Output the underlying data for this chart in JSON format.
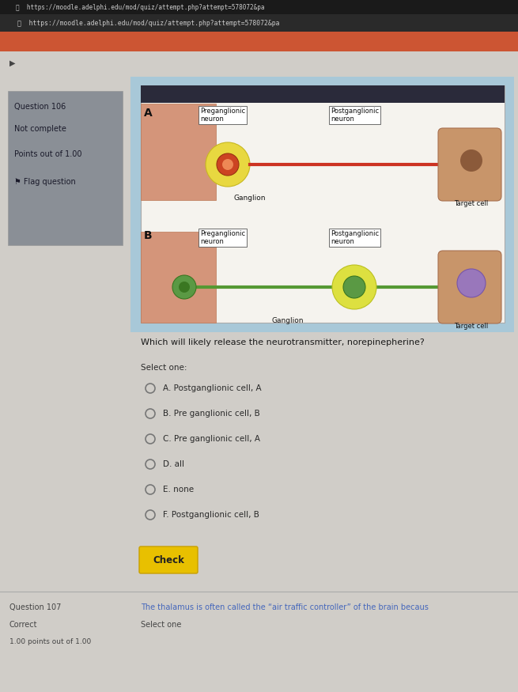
{
  "bg_color": "#c0bdb8",
  "top_title_bar_color": "#1a1a1a",
  "url_bar_color": "#2d2d2d",
  "url_text": "https://moodle.adelphi.edu/mod/quiz/attempt.php?attempt=578072&pa",
  "url_text_color": "#dddddd",
  "orange_bar_color": "#cc5533",
  "page_bg": "#d0cdc8",
  "left_panel_bg": "#8a8f96",
  "left_panel_text_color": "#1a1a2a",
  "left_panel_lines": [
    "Question 106",
    "Not complete",
    "Points out of 1.00",
    "⚑ Flag question"
  ],
  "diag_outer_bg": "#a8c8d8",
  "diag_inner_bg": "#f5f3ee",
  "diag_top_bar": "#2a2a3a",
  "question_text": "Which will likely release the neurotransmitter, norepinepherine?",
  "question_color": "#1a1a1a",
  "select_one_text": "Select one:",
  "options": [
    "A. Postganglionic cell, A",
    "B. Pre ganglionic cell, B",
    "C. Pre ganglionic cell, A",
    "D. all",
    "E. none",
    "F. Postganglionic cell, B"
  ],
  "options_color": "#2a2a2a",
  "check_btn_color": "#e8c000",
  "check_btn_text": "Check",
  "check_btn_border": "#c8a000",
  "q107_label": "Question 107",
  "q107_status": "Correct",
  "q107_points": "1.00 points out of 1.00",
  "q107_text": "The thalamus is often called the “air traffic controller” of the brain becaus",
  "q107_select": "Select one",
  "q107_label_color": "#444444",
  "q107_link_color": "#4466bb"
}
